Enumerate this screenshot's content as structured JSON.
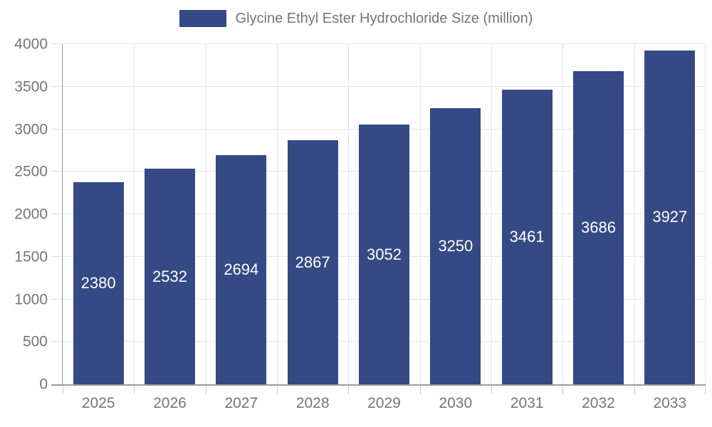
{
  "chart_data": {
    "type": "bar",
    "title": "",
    "categories": [
      "2025",
      "2026",
      "2027",
      "2028",
      "2029",
      "2030",
      "2031",
      "2032",
      "2033"
    ],
    "series": [
      {
        "name": "Glycine Ethyl Ester Hydrochloride Size (million)",
        "values": [
          2380,
          2532,
          2694,
          2867,
          3052,
          3250,
          3461,
          3686,
          3927
        ]
      }
    ],
    "xlabel": "",
    "ylabel": "",
    "ylim": [
      0,
      4000
    ],
    "yticks": [
      0,
      500,
      1000,
      1500,
      2000,
      2500,
      3000,
      3500,
      4000
    ],
    "grid": true,
    "legend_position": "top-center",
    "bar_label_position": "inside-center"
  },
  "legend": {
    "label": "Glycine Ethyl Ester Hydrochloride Size (million)"
  },
  "colors": {
    "bar": "#354a85",
    "bar_label": "#ffffff",
    "axis_line": "#9b9b9b",
    "grid_line": "#e6e6e6",
    "tick_line": "#cccccc",
    "y_tick_line": "#e0e0e0",
    "axis_label": "#757575",
    "background": "#ffffff"
  }
}
